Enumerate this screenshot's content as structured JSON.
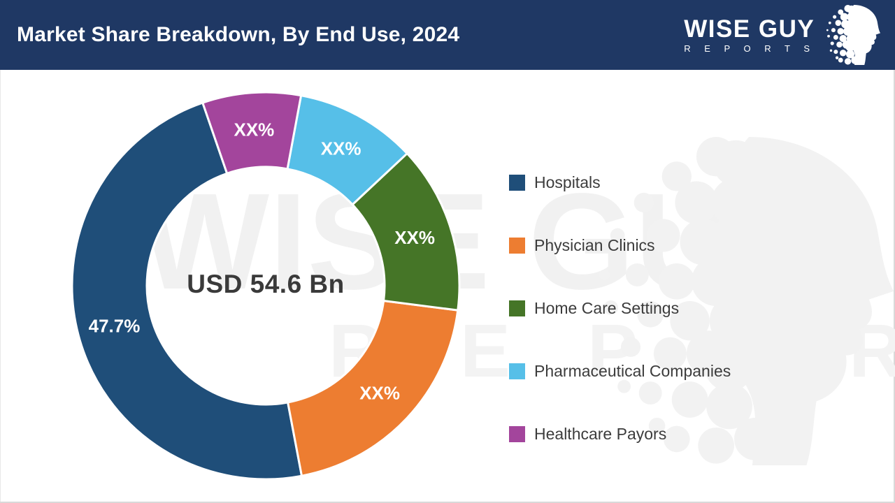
{
  "header": {
    "title": "Market Share Breakdown, By End Use, 2024",
    "background_color": "#1f3864",
    "logo": {
      "line1": "WISE GUY",
      "line2": "R E P O R T S"
    }
  },
  "watermark": {
    "line1": "WISE GUY",
    "line2": "R E P O R T S"
  },
  "chart_data": {
    "type": "donut",
    "title": "Market Share Breakdown, By End Use, 2024",
    "center_label": "USD 54.6 Bn",
    "unit": "percent share",
    "legend_position": "right",
    "start_angle_deg_clockwise_from_north": -19,
    "direction": "counterclockwise",
    "masked_value_text": "XX%",
    "segments": [
      {
        "name": "Hospitals",
        "display_label": "47.7%",
        "value_pct": 47.7,
        "value_is_estimate": false,
        "color": "#1f4e79"
      },
      {
        "name": "Physician Clinics",
        "display_label": "XX%",
        "value_pct": 20.0,
        "value_is_estimate": true,
        "color": "#ed7d31"
      },
      {
        "name": "Home Care Settings",
        "display_label": "XX%",
        "value_pct": 14.0,
        "value_is_estimate": true,
        "color": "#457527"
      },
      {
        "name": "Pharmaceutical Companies",
        "display_label": "XX%",
        "value_pct": 10.1,
        "value_is_estimate": true,
        "color": "#56bfe8"
      },
      {
        "name": "Healthcare Payors",
        "display_label": "XX%",
        "value_pct": 8.2,
        "value_is_estimate": true,
        "color": "#a3459c"
      }
    ]
  }
}
